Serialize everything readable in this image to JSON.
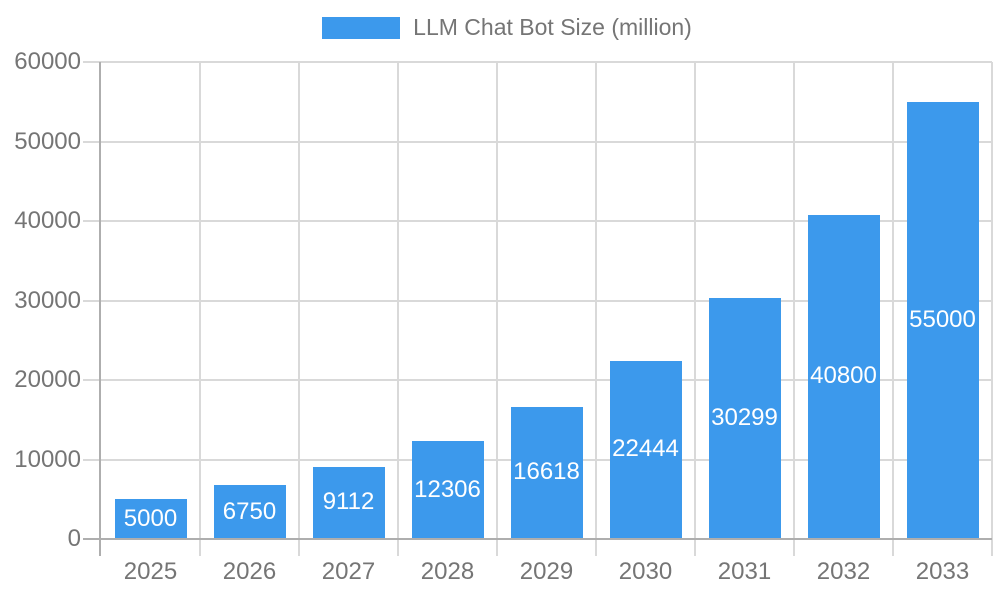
{
  "legend": {
    "label": "LLM Chat Bot Size (million)"
  },
  "chart_data": {
    "type": "bar",
    "title": "LLM Chat Bot Size (million)",
    "series_name": "LLM Chat Bot Size (million)",
    "categories": [
      "2025",
      "2026",
      "2027",
      "2028",
      "2029",
      "2030",
      "2031",
      "2032",
      "2033"
    ],
    "values": [
      5000,
      6750,
      9112,
      12306,
      16618,
      22444,
      30299,
      40800,
      55000
    ],
    "value_labels": [
      "5000",
      "6750",
      "9112",
      "12306",
      "16618",
      "22444",
      "30299",
      "40800",
      "55000"
    ],
    "xlabel": "",
    "ylabel": "",
    "ylim": [
      0,
      60000
    ],
    "yticks": [
      0,
      10000,
      20000,
      30000,
      40000,
      50000,
      60000
    ],
    "grid": true,
    "legend_position": "top",
    "value_label_position": "inside-centered",
    "colors": {
      "bar": "#3c99ec",
      "value_label": "#ffffff",
      "axis_text": "#757575",
      "gridline": "#d9d9d9",
      "axis_line": "#aeaeae",
      "background": "#ffffff"
    }
  }
}
